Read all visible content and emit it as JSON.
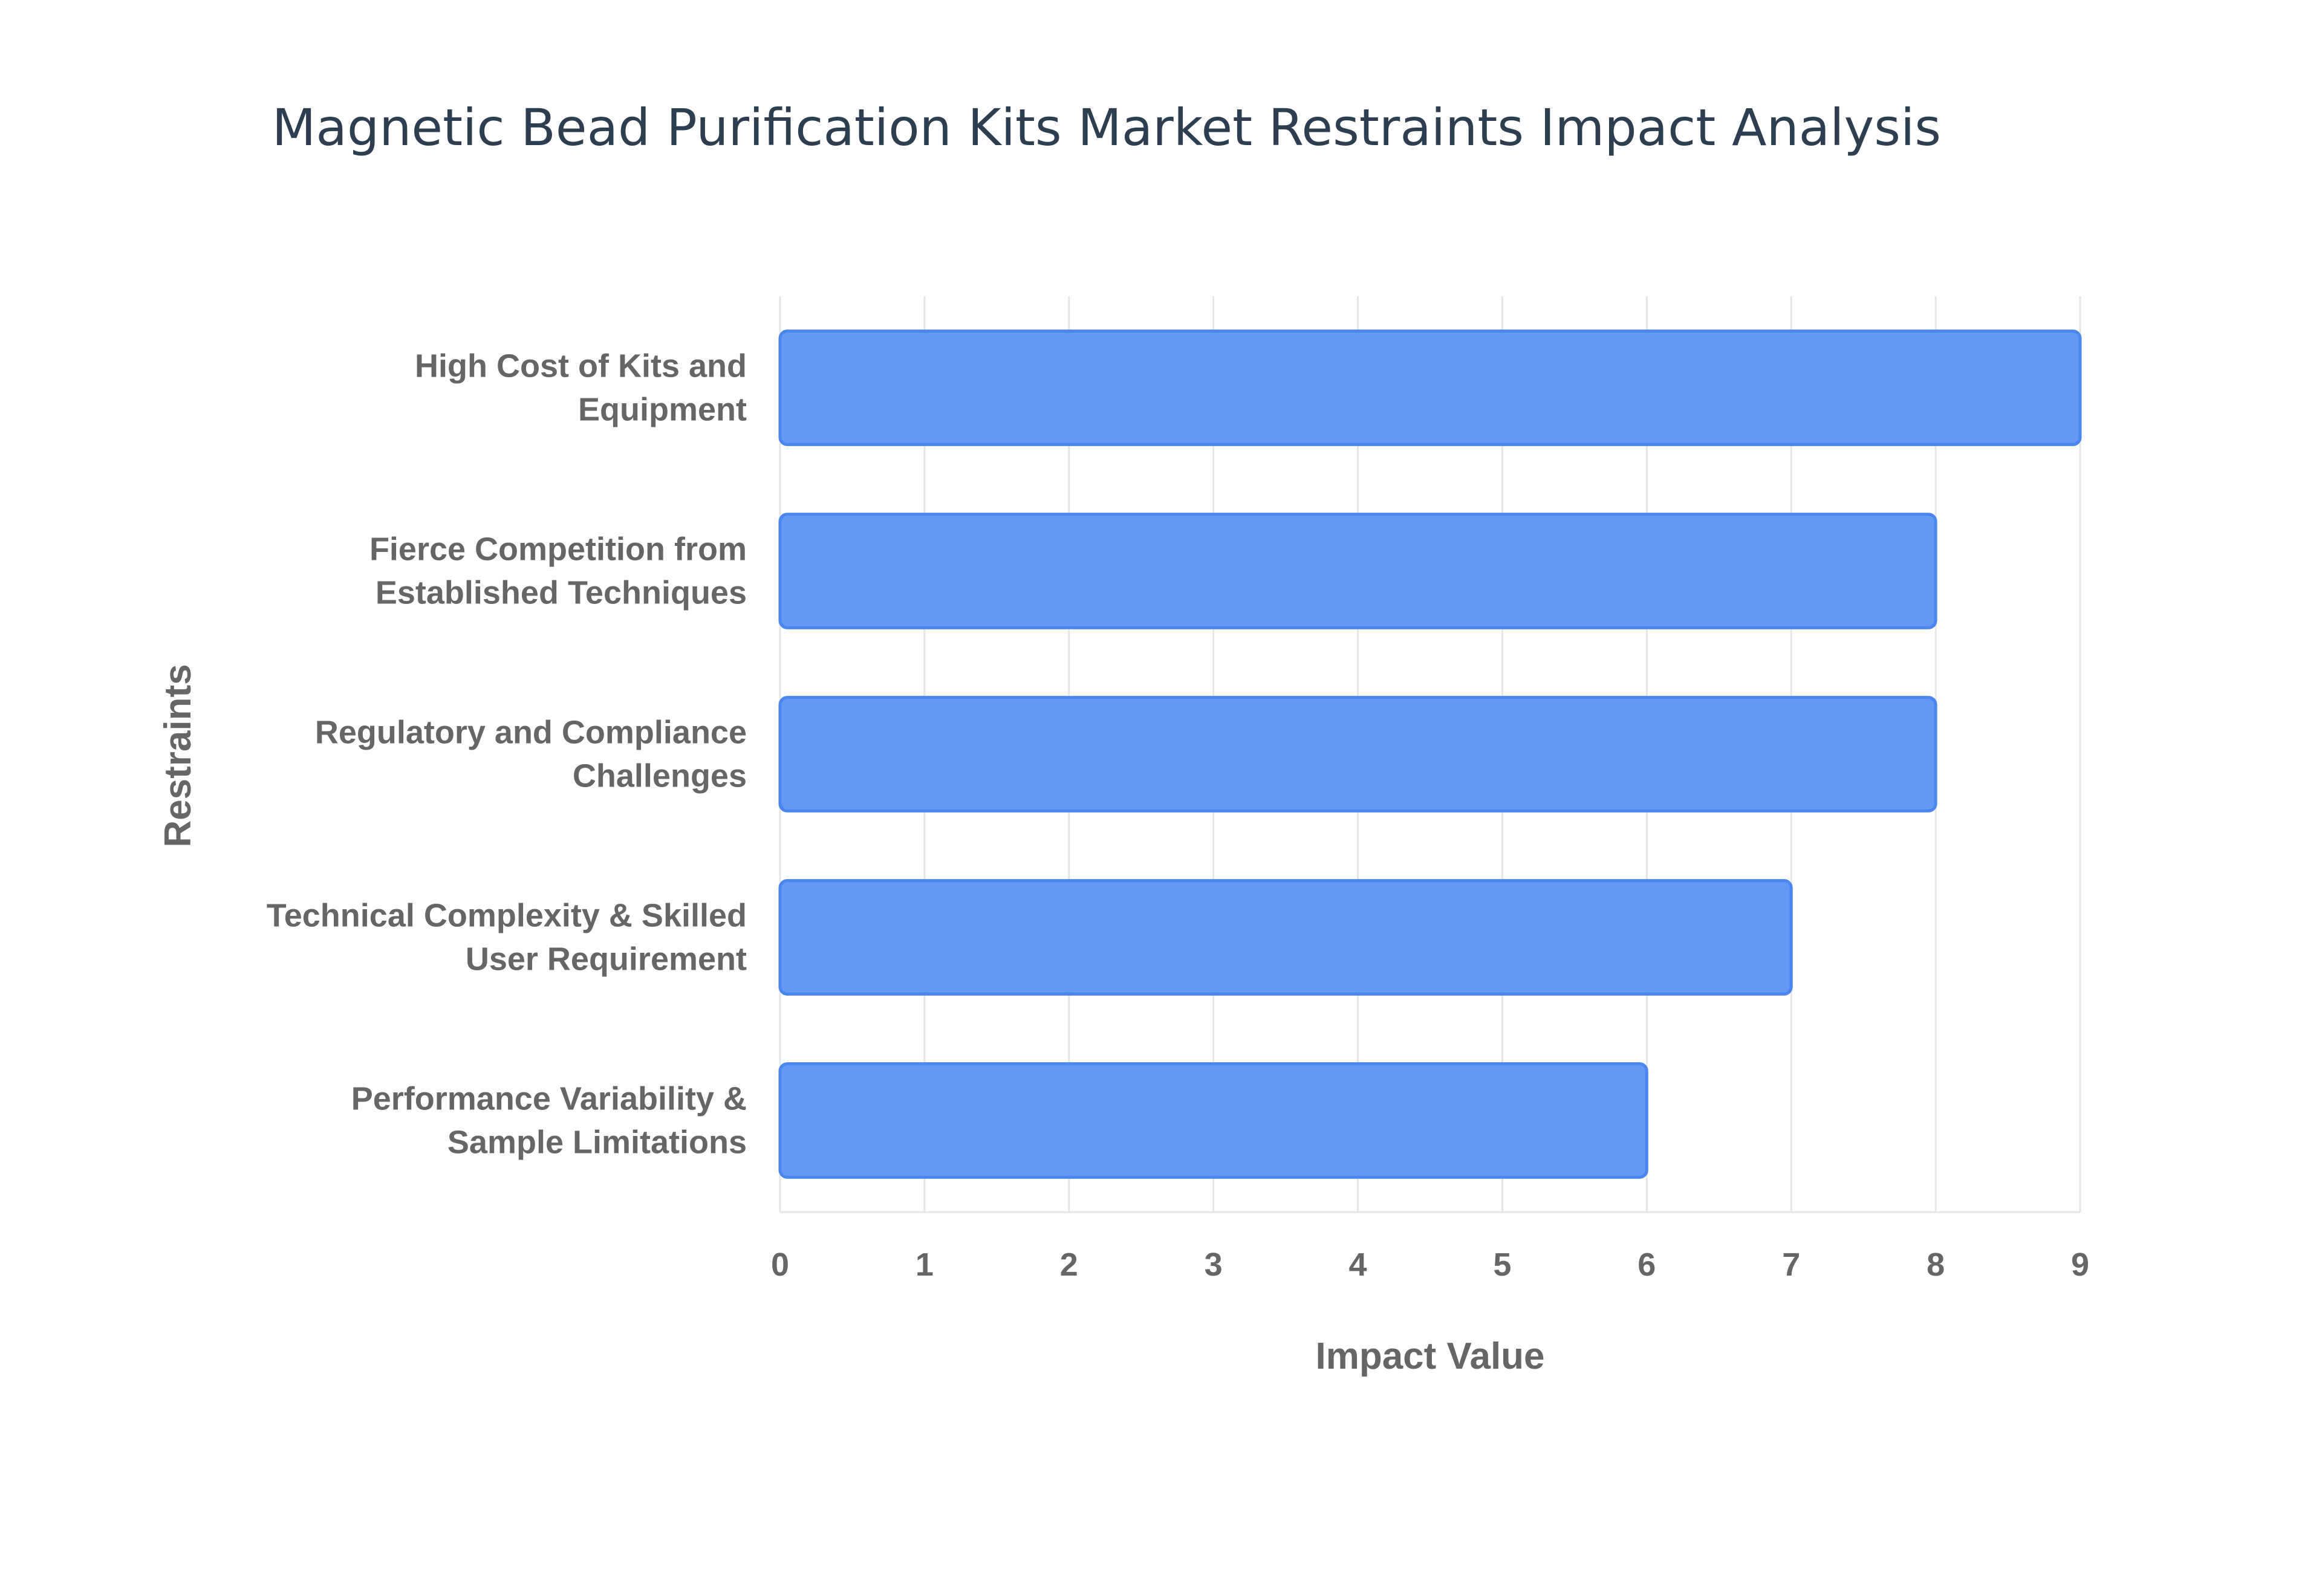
{
  "chart_data": {
    "type": "bar",
    "orientation": "horizontal",
    "title": "Magnetic Bead Purification Kits Market Restraints Impact Analysis",
    "xlabel": "Impact Value",
    "ylabel": "Restraints",
    "categories": [
      [
        "High Cost of Kits and",
        "Equipment"
      ],
      [
        "Fierce Competition from",
        "Established Techniques"
      ],
      [
        "Regulatory and Compliance",
        "Challenges"
      ],
      [
        "Technical Complexity & Skilled",
        "User Requirement"
      ],
      [
        "Performance Variability &",
        "Sample Limitations"
      ]
    ],
    "values": [
      9,
      8,
      8,
      7,
      6
    ],
    "xlim": [
      0,
      9
    ],
    "xticks": [
      "0",
      "1",
      "2",
      "3",
      "4",
      "5",
      "6",
      "7",
      "8",
      "9"
    ],
    "grid": true,
    "legend": "none",
    "colors": {
      "bar_fill": "#6399f5",
      "bar_stroke": "#4a86ee",
      "title": "#2c3e50",
      "axis_text": "#666666",
      "grid": "#e6e6e6"
    }
  }
}
